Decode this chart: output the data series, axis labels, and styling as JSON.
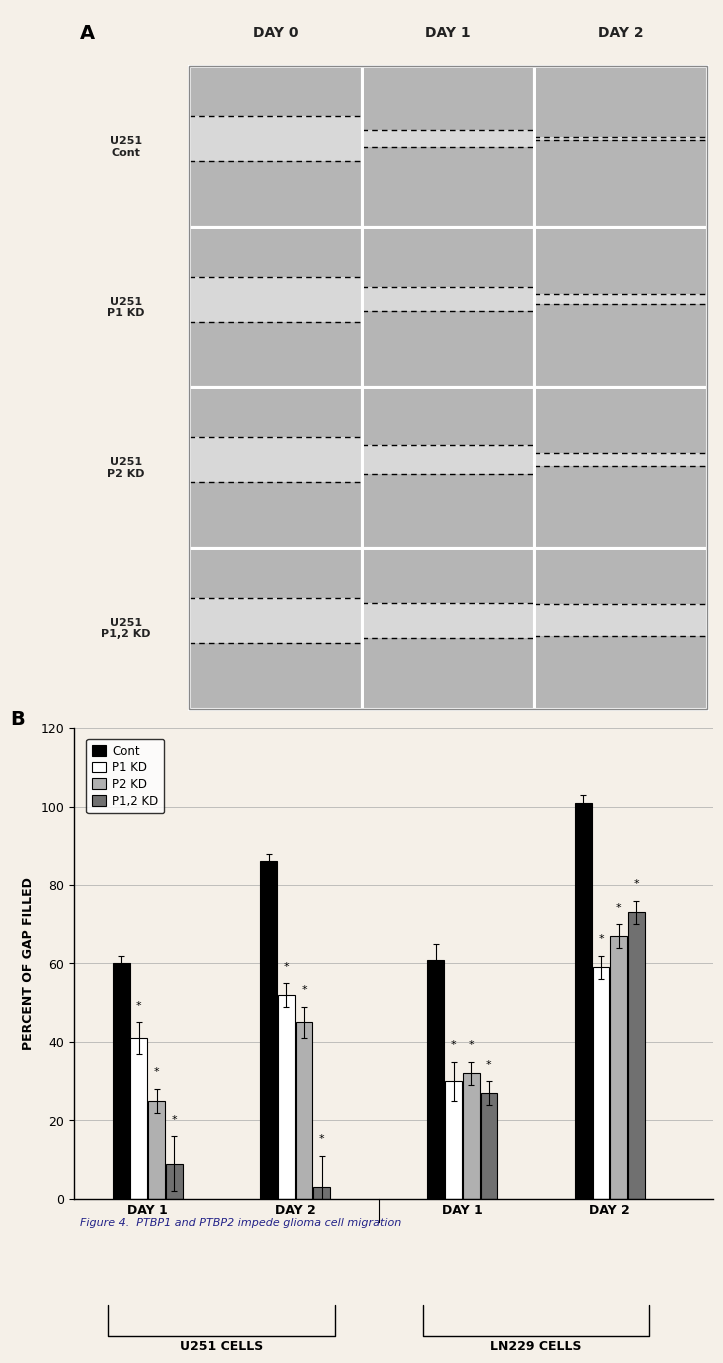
{
  "panel_A_label": "A",
  "panel_B_label": "B",
  "row_labels": [
    "U251\nCont",
    "U251\nP1 KD",
    "U251\nP2 KD",
    "U251\nP1,2 KD"
  ],
  "col_labels": [
    "DAY 0",
    "DAY 1",
    "DAY 2"
  ],
  "bar_groups": [
    "DAY 1",
    "DAY 2",
    "DAY 1",
    "DAY 2"
  ],
  "cell_lines": [
    "U251 CELLS",
    "LN229 CELLS"
  ],
  "legend_labels": [
    "Cont",
    "P1 KD",
    "P2 KD",
    "P1,2 KD"
  ],
  "bar_colors": [
    "#000000",
    "#ffffff",
    "#b0b0b0",
    "#707070"
  ],
  "bar_edge_colors": [
    "#000000",
    "#000000",
    "#000000",
    "#000000"
  ],
  "ylabel": "PERCENT OF GAP FILLED",
  "ylim": [
    0,
    120
  ],
  "yticks": [
    0,
    20,
    40,
    60,
    80,
    100,
    120
  ],
  "bar_width": 0.18,
  "values": {
    "U251_D1": [
      60,
      41,
      25,
      9
    ],
    "U251_D2": [
      86,
      52,
      45,
      3
    ],
    "LN229_D1": [
      61,
      30,
      32,
      27
    ],
    "LN229_D2": [
      101,
      59,
      67,
      73
    ]
  },
  "errors": {
    "U251_D1": [
      2,
      4,
      3,
      7
    ],
    "U251_D2": [
      2,
      3,
      4,
      8
    ],
    "LN229_D1": [
      4,
      5,
      3,
      3
    ],
    "LN229_D2": [
      2,
      3,
      3,
      3
    ]
  },
  "significance": {
    "U251_D1": [
      false,
      true,
      true,
      true
    ],
    "U251_D2": [
      false,
      true,
      true,
      true
    ],
    "LN229_D1": [
      false,
      true,
      true,
      true
    ],
    "LN229_D2": [
      false,
      true,
      true,
      true
    ]
  },
  "figure_caption": "Figure 4.  PTBP1 and PTBP2 impede glioma cell migration",
  "background_color": "#f5f0e8",
  "panel_bg": "#f5f0e8"
}
